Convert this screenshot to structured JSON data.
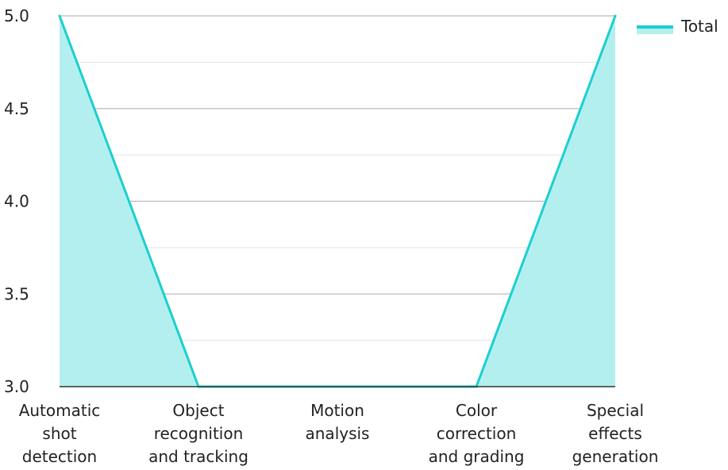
{
  "chart_data": {
    "type": "area",
    "categories": [
      "Automatic shot detection",
      "Object recognition and tracking",
      "Motion analysis",
      "Color correction and grading",
      "Special effects generation"
    ],
    "category_lines": [
      [
        "Automatic",
        "shot",
        "detection"
      ],
      [
        "Object",
        "recognition",
        "and tracking"
      ],
      [
        "Motion",
        "analysis"
      ],
      [
        "Color",
        "correction",
        "and grading"
      ],
      [
        "Special",
        "effects",
        "generation"
      ]
    ],
    "series": [
      {
        "name": "Total",
        "values": [
          5.0,
          3.0,
          3.0,
          3.0,
          5.0
        ],
        "line_color": "#1ccfcf",
        "fill_color": "#b3efef"
      }
    ],
    "y_ticks": [
      "3.0",
      "3.5",
      "4.0",
      "4.5",
      "5.0"
    ],
    "ylim": [
      3.0,
      5.0
    ],
    "grid": true,
    "minor_grid": true,
    "legend_position": "top-right",
    "colors": {
      "major_grid": "#bbbbbb",
      "minor_grid": "#e3e3e3",
      "axis": "#333333",
      "text": "#222222"
    }
  }
}
